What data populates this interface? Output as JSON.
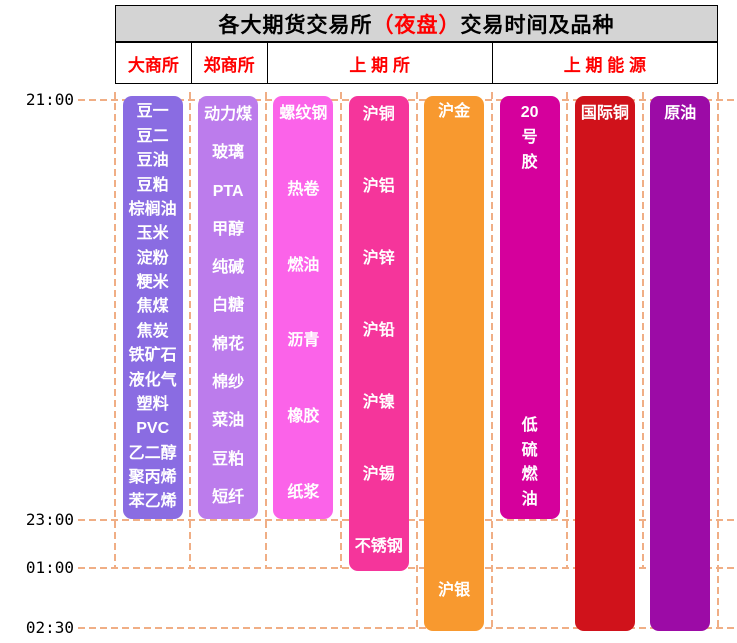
{
  "title": {
    "prefix": "各大期货交易所",
    "highlight": "（夜盘）",
    "suffix": "交易时间及品种"
  },
  "header": {
    "exchanges": [
      {
        "label": "大商所"
      },
      {
        "label": "郑商所"
      },
      {
        "label": "上 期 所"
      },
      {
        "label": "上 期 能 源"
      }
    ]
  },
  "time_labels": [
    "21:00",
    "23:00",
    "01:00",
    "02:30"
  ],
  "colors": {
    "grid": "#F0AE85",
    "title_bg": "#D4D4D4",
    "title_highlight": "#FF0000",
    "header_text": "#FF0000",
    "time_text": "#000000",
    "bar_text": "#FFFFFF"
  },
  "chart_data": {
    "type": "bar",
    "title": "各大期货交易所（夜盘）交易时间及品种",
    "subtitle_note": "night session trading hours by exchange",
    "time_axis": [
      "21:00",
      "23:00",
      "01:00",
      "02:30"
    ],
    "grid": "dashed",
    "series": [
      {
        "id": "dce",
        "exchange": "大商所",
        "start": "21:00",
        "end": "23:00",
        "color": "#8A6CE2",
        "col": 0,
        "item_layout": "evenly",
        "pad": "2px 0",
        "products": [
          "豆一",
          "豆二",
          "豆油",
          "豆粕",
          "棕榈油",
          "玉米",
          "淀粉",
          "粳米",
          "焦煤",
          "焦炭",
          "铁矿石",
          "液化气",
          "塑料",
          "PVC",
          "乙二醇",
          "聚丙烯",
          "苯乙烯"
        ]
      },
      {
        "id": "czce",
        "exchange": "郑商所",
        "start": "21:00",
        "end": "23:00",
        "color": "#BC7CEC",
        "col": 1,
        "item_layout": "ends",
        "pad": "9px 0 11px",
        "products": [
          "动力煤",
          "玻璃",
          "PTA",
          "甲醇",
          "纯碱",
          "白糖",
          "棉花",
          "棉纱",
          "菜油",
          "豆粕",
          "短纤"
        ]
      },
      {
        "id": "shfe-ferrous",
        "exchange": "上期所",
        "start": "21:00",
        "end": "23:00",
        "color": "#FB63E9",
        "col": 2,
        "item_layout": "ends",
        "pad": "8px 0 16px",
        "products": [
          "螺纹钢",
          "热卷",
          "燃油",
          "沥青",
          "橡胶",
          "纸浆"
        ]
      },
      {
        "id": "shfe-metals",
        "exchange": "上期所",
        "start": "21:00",
        "end": "01:00",
        "color": "#F5359B",
        "col": 3,
        "item_layout": "ends",
        "pad": "9px 0 14px",
        "products": [
          "沪铜",
          "沪铝",
          "沪锌",
          "沪铅",
          "沪镍",
          "沪锡",
          "不锈钢"
        ]
      },
      {
        "id": "shfe-precious",
        "exchange": "上期所",
        "start": "21:00",
        "end": "02:30",
        "color": "#F8992F",
        "col": 4,
        "item_layout": "ends",
        "pad": "6px 0 30px",
        "products": [
          "沪金",
          "沪银"
        ]
      },
      {
        "id": "ine-rubber-fuel",
        "exchange": "上期能源",
        "start": "21:00",
        "end": "23:00",
        "color": "#D5009C",
        "col": 5,
        "item_layout": "ends",
        "pad": "5px 0 6px",
        "vertical": true,
        "products": [
          "20号胶",
          "低硫燃油"
        ]
      },
      {
        "id": "ine-copper",
        "exchange": "上期能源",
        "start": "21:00",
        "end": "02:30",
        "color": "#D0121B",
        "col": 6,
        "item_layout": "top",
        "pad": "8px 0",
        "products": [
          "国际铜"
        ]
      },
      {
        "id": "ine-crude",
        "exchange": "上期能源",
        "start": "21:00",
        "end": "02:30",
        "color": "#9C0BA6",
        "col": 7,
        "item_layout": "top",
        "pad": "8px 0",
        "products": [
          "原油"
        ]
      }
    ]
  }
}
